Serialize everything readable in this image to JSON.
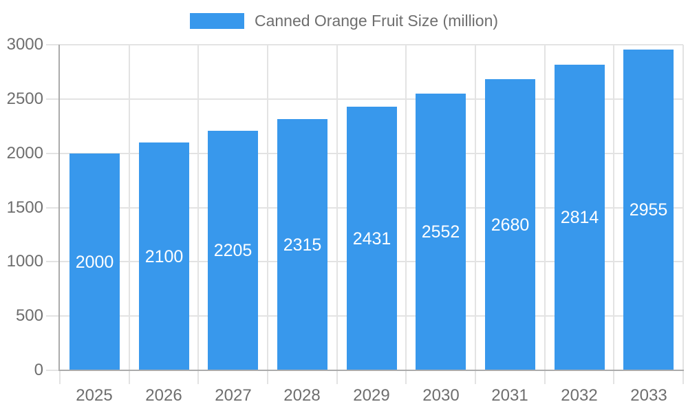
{
  "chart_data": {
    "type": "bar",
    "title": "Canned Orange Fruit Size (million)",
    "legend": {
      "position": "top",
      "label": "Canned Orange Fruit Size (million)"
    },
    "categories": [
      "2025",
      "2026",
      "2027",
      "2028",
      "2029",
      "2030",
      "2031",
      "2032",
      "2033"
    ],
    "values": [
      2000,
      2100,
      2205,
      2315,
      2431,
      2552,
      2680,
      2814,
      2955
    ],
    "xlabel": "",
    "ylabel": "",
    "ylim": [
      0,
      3000
    ],
    "yticks": [
      0,
      500,
      1000,
      1500,
      2000,
      2500,
      3000
    ],
    "grid": true,
    "value_labels_inside_bars": true,
    "colors": {
      "bar": "#3898ec",
      "value_label": "#ffffff",
      "text": "#6e6e6e",
      "grid": "#e3e3e3",
      "axis": "#ababab",
      "background": "#ffffff"
    }
  }
}
